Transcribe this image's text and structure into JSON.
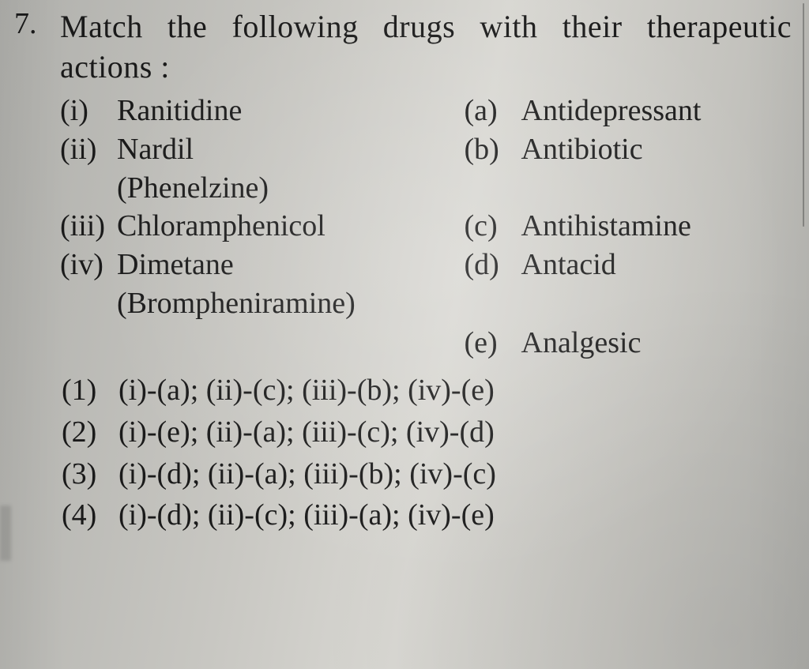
{
  "question": {
    "number": "7.",
    "stem": "Match the following drugs with their therapeutic actions :",
    "left": [
      {
        "marker": "(i)",
        "text": "Ranitidine",
        "sub": ""
      },
      {
        "marker": "(ii)",
        "text": "Nardil",
        "sub": "(Phenelzine)"
      },
      {
        "marker": "(iii)",
        "text": "Chloramphenicol",
        "sub": ""
      },
      {
        "marker": "(iv)",
        "text": "Dimetane",
        "sub": "(Brompheniramine)"
      }
    ],
    "right": [
      {
        "marker": "(a)",
        "text": "Antidepressant"
      },
      {
        "marker": "(b)",
        "text": "Antibiotic"
      },
      {
        "marker": "(c)",
        "text": "Antihistamine"
      },
      {
        "marker": "(d)",
        "text": "Antacid"
      }
    ],
    "extra_right": {
      "marker": "(e)",
      "text": "Analgesic"
    },
    "options": [
      {
        "marker": "(1)",
        "text": "(i)-(a); (ii)-(c); (iii)-(b); (iv)-(e)"
      },
      {
        "marker": "(2)",
        "text": "(i)-(e); (ii)-(a); (iii)-(c); (iv)-(d)"
      },
      {
        "marker": "(3)",
        "text": "(i)-(d); (ii)-(a); (iii)-(b); (iv)-(c)"
      },
      {
        "marker": "(4)",
        "text": "(i)-(d); (ii)-(c); (iii)-(a); (iv)-(e)"
      }
    ]
  },
  "style": {
    "text_color": "#1a1a1a",
    "bg_gradient": [
      "#b0b0ac",
      "#d8d7d2"
    ],
    "font_family": "Times New Roman",
    "base_fontsize_pt": 28
  }
}
